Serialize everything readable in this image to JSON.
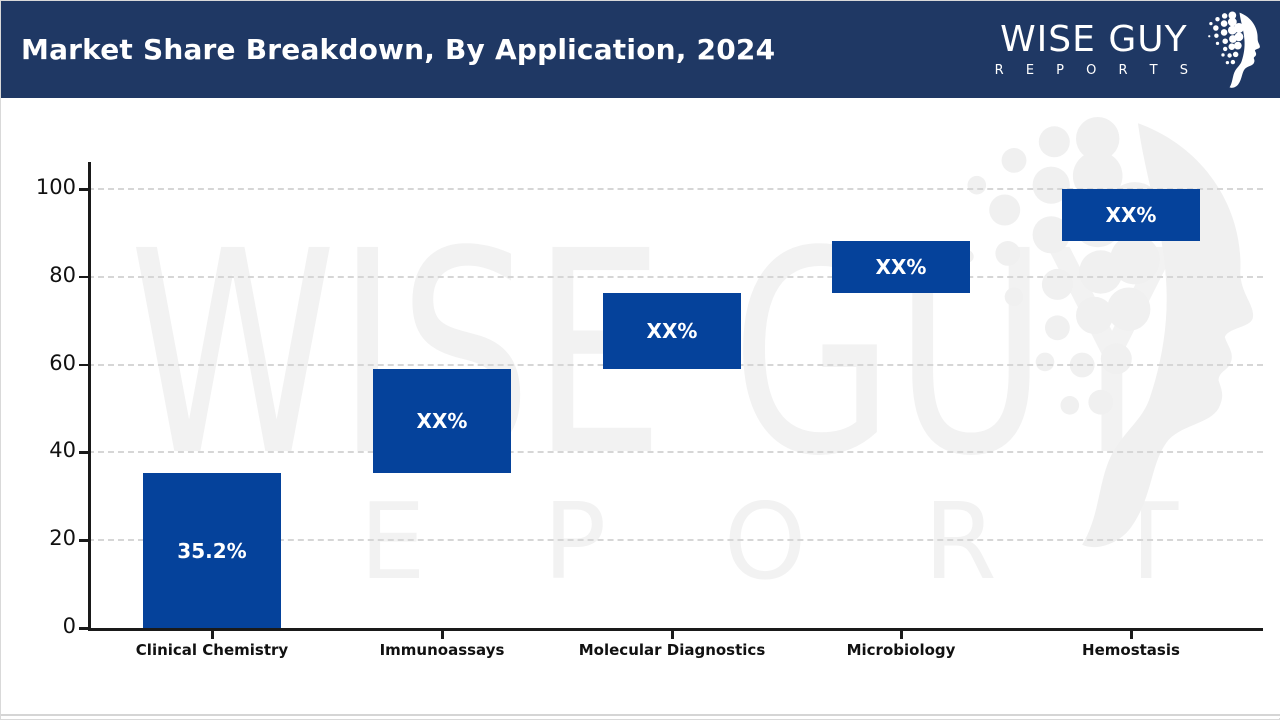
{
  "header": {
    "title": "Market Share Breakdown, By Application, 2024",
    "logo": {
      "brand": "WISE GUY",
      "sub": "R E P O R T S"
    }
  },
  "watermark": {
    "brand": "WISE GUY",
    "sub": "R E P O R T S"
  },
  "chart_data": {
    "type": "bar",
    "subtype": "waterfall",
    "title": "Market Share Breakdown, By Application, 2024",
    "categories": [
      "Clinical Chemistry",
      "Immunoassays",
      "Molecular Diagnostics",
      "Microbiology",
      "Hemostasis"
    ],
    "segments": [
      {
        "category": "Clinical Chemistry",
        "start": 0,
        "end": 35.2,
        "value": 35.2,
        "label": "35.2%"
      },
      {
        "category": "Immunoassays",
        "start": 35.2,
        "end": 58.9,
        "value": 23.7,
        "label": "XX%"
      },
      {
        "category": "Molecular Diagnostics",
        "start": 58.9,
        "end": 76.4,
        "value": 17.5,
        "label": "XX%"
      },
      {
        "category": "Microbiology",
        "start": 76.4,
        "end": 88.2,
        "value": 11.8,
        "label": "XX%"
      },
      {
        "category": "Hemostasis",
        "start": 88.2,
        "end": 100,
        "value": 11.8,
        "label": "XX%"
      }
    ],
    "yticks": [
      0,
      20,
      40,
      60,
      80,
      100
    ],
    "ylim": [
      0,
      105
    ],
    "xlabel": "",
    "ylabel": "",
    "grid": "horizontal-dashed",
    "legend": "none",
    "bar_color": "#05429b",
    "colors": {
      "header_bg": "#1f3864",
      "grid": "#d6d6d6",
      "axis": "#1a1a1a",
      "bar_label_text": "#ffffff",
      "watermark": "#f2f2f2"
    }
  }
}
